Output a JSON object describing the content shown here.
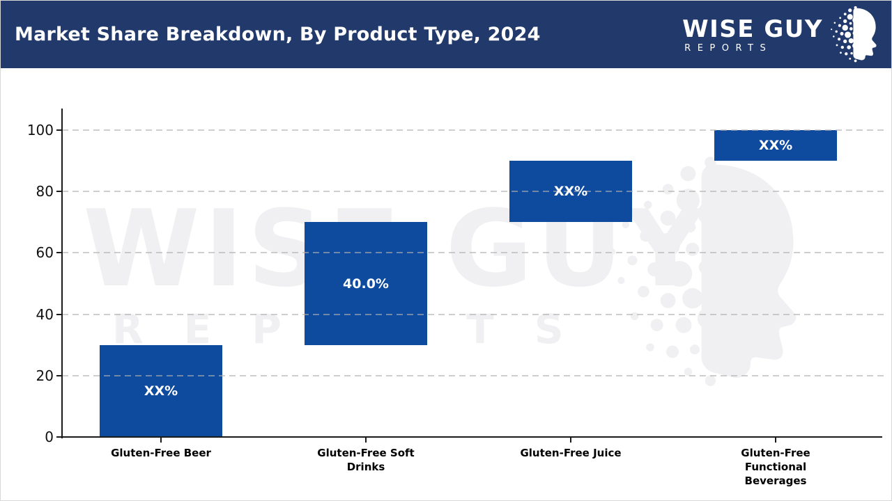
{
  "header": {
    "title": "Market Share Breakdown, By Product Type, 2024",
    "logo": {
      "line1": "WISE GUY",
      "line2": "REPORTS"
    }
  },
  "watermark": {
    "line1": "WISE GUY",
    "line2": "REPORTS"
  },
  "colors": {
    "header_bg": "#22396B",
    "bar": "#0E4A9E",
    "grid": "#c9c9c9",
    "watermark": "#f0f0f2",
    "axis": "#1a1a1a"
  },
  "chart_data": {
    "type": "bar",
    "subtype": "waterfall",
    "title": "Market Share Breakdown, By Product Type, 2024",
    "categories": [
      "Gluten-Free Beer",
      "Gluten-Free Soft\nDrinks",
      "Gluten-Free Juice",
      "Gluten-Free\nFunctional\nBeverages"
    ],
    "bars": [
      {
        "category": "Gluten-Free Beer",
        "from": 0,
        "to": 30,
        "label": "XX%"
      },
      {
        "category": "Gluten-Free Soft Drinks",
        "from": 30,
        "to": 70,
        "label": "40.0%"
      },
      {
        "category": "Gluten-Free Juice",
        "from": 70,
        "to": 90,
        "label": "XX%"
      },
      {
        "category": "Gluten-Free Functional Beverages",
        "from": 90,
        "to": 100,
        "label": "XX%"
      }
    ],
    "yticks": [
      0,
      20,
      40,
      60,
      80,
      100
    ],
    "ylim": [
      0,
      107
    ],
    "xlabel": "",
    "ylabel": "",
    "grid": "dashed-horizontal",
    "legend": "none",
    "bar_color": "#0E4A9E",
    "value_label_color": "#ffffff"
  }
}
